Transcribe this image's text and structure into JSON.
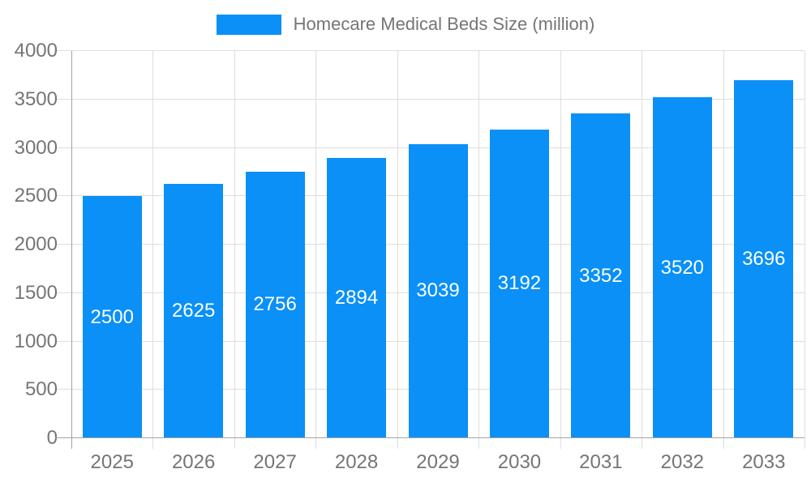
{
  "legend": {
    "label": "Homecare Medical Beds Size (million)"
  },
  "colors": {
    "bar": "#0a90f7",
    "axis": "#a3a3a3",
    "grid": "#dedede",
    "text": "#757575",
    "bar_label": "#ffffff",
    "background": "#ffffff"
  },
  "chart_data": {
    "type": "bar",
    "title": "Homecare Medical Beds Size (million)",
    "categories": [
      "2025",
      "2026",
      "2027",
      "2028",
      "2029",
      "2030",
      "2031",
      "2032",
      "2033"
    ],
    "values": [
      2500,
      2625,
      2756,
      2894,
      3039,
      3192,
      3352,
      3520,
      3696
    ],
    "xlabel": "",
    "ylabel": "",
    "ylim": [
      0,
      4000
    ],
    "yticks": [
      0,
      500,
      1000,
      1500,
      2000,
      2500,
      3000,
      3500,
      4000
    ],
    "grid": true,
    "legend_position": "top",
    "bar_value_labels": "centered-white"
  }
}
